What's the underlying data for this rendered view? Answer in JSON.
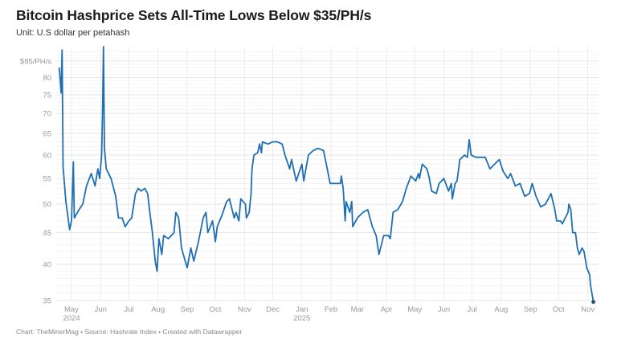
{
  "title": "Bitcoin Hashprice Sets All-Time Lows Below $35/PH/s",
  "subtitle": "Unit: U.S dollar per petahash",
  "footer": "Chart: TheMinerMag • Source: Hashrate Index • Created with Datawrapper",
  "colors": {
    "line": "#1f6fb2",
    "grid": "#e6e6e6",
    "text": "#999999"
  },
  "chart_data": {
    "type": "line",
    "title": "Bitcoin Hashprice Sets All-Time Lows Below $35/PH/s",
    "ylabel": "",
    "xlabel": "",
    "y_scale": "log",
    "ylim": [
      35,
      85
    ],
    "grid": true,
    "y_ticks": [
      {
        "value": 85,
        "label": "$85/PH/s"
      },
      {
        "value": 80,
        "label": "80"
      },
      {
        "value": 75,
        "label": "75"
      },
      {
        "value": 70,
        "label": "70"
      },
      {
        "value": 65,
        "label": "65"
      },
      {
        "value": 60,
        "label": "60"
      },
      {
        "value": 55,
        "label": "55"
      },
      {
        "value": 50,
        "label": "50"
      },
      {
        "value": 45,
        "label": "45"
      },
      {
        "value": 40,
        "label": "40"
      },
      {
        "value": 35,
        "label": "35"
      }
    ],
    "x_ticks": [
      {
        "date": "2024-05-01",
        "label": "May",
        "sub": "2024"
      },
      {
        "date": "2024-06-01",
        "label": "Jun"
      },
      {
        "date": "2024-07-01",
        "label": "Jul"
      },
      {
        "date": "2024-08-01",
        "label": "Aug"
      },
      {
        "date": "2024-09-01",
        "label": "Sep"
      },
      {
        "date": "2024-10-01",
        "label": "Oct"
      },
      {
        "date": "2024-11-01",
        "label": "Nov"
      },
      {
        "date": "2024-12-01",
        "label": "Dec"
      },
      {
        "date": "2025-01-01",
        "label": "Jan",
        "sub": "2025"
      },
      {
        "date": "2025-02-01",
        "label": "Feb"
      },
      {
        "date": "2025-03-01",
        "label": "Mar"
      },
      {
        "date": "2025-04-01",
        "label": "Apr"
      },
      {
        "date": "2025-05-01",
        "label": "May"
      },
      {
        "date": "2025-06-01",
        "label": "Jun"
      },
      {
        "date": "2025-07-01",
        "label": "Jul"
      },
      {
        "date": "2025-08-01",
        "label": "Aug"
      },
      {
        "date": "2025-09-01",
        "label": "Sep"
      },
      {
        "date": "2025-10-01",
        "label": "Oct"
      },
      {
        "date": "2025-11-01",
        "label": "Nov"
      }
    ],
    "series": [
      {
        "points": [
          [
            "2024-04-18",
            83
          ],
          [
            "2024-04-20",
            75.5
          ],
          [
            "2024-04-21",
            88.6
          ],
          [
            "2024-04-22",
            57.5
          ],
          [
            "2024-04-25",
            50.5
          ],
          [
            "2024-04-29",
            45.5
          ],
          [
            "2024-05-01",
            47
          ],
          [
            "2024-05-03",
            58.5
          ],
          [
            "2024-05-04",
            47.5
          ],
          [
            "2024-05-09",
            49
          ],
          [
            "2024-05-13",
            50
          ],
          [
            "2024-05-17",
            53.5
          ],
          [
            "2024-05-22",
            56
          ],
          [
            "2024-05-26",
            53.5
          ],
          [
            "2024-05-29",
            57
          ],
          [
            "2024-05-31",
            55
          ],
          [
            "2024-06-02",
            60
          ],
          [
            "2024-06-03",
            70
          ],
          [
            "2024-06-04",
            90
          ],
          [
            "2024-06-05",
            61.5
          ],
          [
            "2024-06-07",
            57
          ],
          [
            "2024-06-12",
            55
          ],
          [
            "2024-06-17",
            51.5
          ],
          [
            "2024-06-20",
            47.5
          ],
          [
            "2024-06-24",
            47.5
          ],
          [
            "2024-06-27",
            46
          ],
          [
            "2024-07-01",
            47
          ],
          [
            "2024-07-04",
            47.5
          ],
          [
            "2024-07-08",
            52
          ],
          [
            "2024-07-11",
            53
          ],
          [
            "2024-07-14",
            52.5
          ],
          [
            "2024-07-18",
            53
          ],
          [
            "2024-07-21",
            52
          ],
          [
            "2024-07-23",
            49
          ],
          [
            "2024-07-26",
            45
          ],
          [
            "2024-07-29",
            40.5
          ],
          [
            "2024-07-31",
            39
          ],
          [
            "2024-08-02",
            44
          ],
          [
            "2024-08-05",
            41.5
          ],
          [
            "2024-08-07",
            44.5
          ],
          [
            "2024-08-12",
            44
          ],
          [
            "2024-08-18",
            45
          ],
          [
            "2024-08-20",
            48.5
          ],
          [
            "2024-08-23",
            47.5
          ],
          [
            "2024-08-26",
            42.5
          ],
          [
            "2024-08-30",
            40.5
          ],
          [
            "2024-09-01",
            39.5
          ],
          [
            "2024-09-05",
            42.5
          ],
          [
            "2024-09-08",
            40.5
          ],
          [
            "2024-09-13",
            43.5
          ],
          [
            "2024-09-18",
            47.5
          ],
          [
            "2024-09-21",
            48.5
          ],
          [
            "2024-09-23",
            45
          ],
          [
            "2024-09-28",
            47
          ],
          [
            "2024-10-01",
            43.5
          ],
          [
            "2024-10-03",
            46
          ],
          [
            "2024-10-08",
            48
          ],
          [
            "2024-10-13",
            50.5
          ],
          [
            "2024-10-16",
            51
          ],
          [
            "2024-10-21",
            47.5
          ],
          [
            "2024-10-23",
            48.5
          ],
          [
            "2024-10-26",
            47
          ],
          [
            "2024-10-28",
            51
          ],
          [
            "2024-11-02",
            50
          ],
          [
            "2024-11-03",
            47.5
          ],
          [
            "2024-11-06",
            48.5
          ],
          [
            "2024-11-08",
            52
          ],
          [
            "2024-11-09",
            57
          ],
          [
            "2024-11-11",
            60
          ],
          [
            "2024-11-15",
            60.5
          ],
          [
            "2024-11-17",
            62.5
          ],
          [
            "2024-11-19",
            60.5
          ],
          [
            "2024-11-20",
            63
          ],
          [
            "2024-11-26",
            62.5
          ],
          [
            "2024-12-01",
            63
          ],
          [
            "2024-12-06",
            63
          ],
          [
            "2024-12-11",
            62.5
          ],
          [
            "2024-12-14",
            60
          ],
          [
            "2024-12-19",
            57
          ],
          [
            "2024-12-21",
            59
          ],
          [
            "2024-12-26",
            54.5
          ],
          [
            "2025-01-01",
            58
          ],
          [
            "2025-01-03",
            54.5
          ],
          [
            "2025-01-08",
            60
          ],
          [
            "2025-01-13",
            61
          ],
          [
            "2025-01-18",
            61.5
          ],
          [
            "2025-01-24",
            61
          ],
          [
            "2025-01-27",
            58
          ],
          [
            "2025-01-31",
            54
          ],
          [
            "2025-02-05",
            54
          ],
          [
            "2025-02-11",
            54
          ],
          [
            "2025-02-12",
            55.5
          ],
          [
            "2025-02-14",
            53
          ],
          [
            "2025-02-16",
            47
          ],
          [
            "2025-02-17",
            50.5
          ],
          [
            "2025-02-21",
            48.5
          ],
          [
            "2025-02-23",
            50.5
          ],
          [
            "2025-02-24",
            46
          ],
          [
            "2025-03-01",
            47.5
          ],
          [
            "2025-03-07",
            48.5
          ],
          [
            "2025-03-12",
            49
          ],
          [
            "2025-03-17",
            46
          ],
          [
            "2025-03-21",
            44.5
          ],
          [
            "2025-03-24",
            41.5
          ],
          [
            "2025-03-29",
            44.5
          ],
          [
            "2025-04-03",
            44.5
          ],
          [
            "2025-04-05",
            44
          ],
          [
            "2025-04-08",
            48.5
          ],
          [
            "2025-04-13",
            49
          ],
          [
            "2025-04-18",
            50.5
          ],
          [
            "2025-04-22",
            53
          ],
          [
            "2025-04-27",
            55.5
          ],
          [
            "2025-05-02",
            54.5
          ],
          [
            "2025-05-05",
            56
          ],
          [
            "2025-05-06",
            55
          ],
          [
            "2025-05-09",
            58
          ],
          [
            "2025-05-14",
            57
          ],
          [
            "2025-05-16",
            55.5
          ],
          [
            "2025-05-19",
            52.5
          ],
          [
            "2025-05-24",
            52
          ],
          [
            "2025-05-27",
            54
          ],
          [
            "2025-06-01",
            55
          ],
          [
            "2025-06-06",
            52.5
          ],
          [
            "2025-06-09",
            54
          ],
          [
            "2025-06-10",
            51
          ],
          [
            "2025-06-13",
            54
          ],
          [
            "2025-06-15",
            54.5
          ],
          [
            "2025-06-18",
            59
          ],
          [
            "2025-06-23",
            60
          ],
          [
            "2025-06-26",
            59.5
          ],
          [
            "2025-06-28",
            63.5
          ],
          [
            "2025-06-30",
            60
          ],
          [
            "2025-07-05",
            59.5
          ],
          [
            "2025-07-10",
            59.5
          ],
          [
            "2025-07-15",
            59.5
          ],
          [
            "2025-07-20",
            57
          ],
          [
            "2025-07-25",
            58
          ],
          [
            "2025-07-30",
            59
          ],
          [
            "2025-08-03",
            56.5
          ],
          [
            "2025-08-08",
            55
          ],
          [
            "2025-08-11",
            56
          ],
          [
            "2025-08-16",
            53.5
          ],
          [
            "2025-08-21",
            54
          ],
          [
            "2025-08-26",
            51.5
          ],
          [
            "2025-08-31",
            52
          ],
          [
            "2025-09-03",
            54
          ],
          [
            "2025-09-07",
            51.5
          ],
          [
            "2025-09-12",
            49.5
          ],
          [
            "2025-09-17",
            50
          ],
          [
            "2025-09-23",
            52
          ],
          [
            "2025-09-27",
            49
          ],
          [
            "2025-09-29",
            47
          ],
          [
            "2025-10-03",
            47
          ],
          [
            "2025-10-05",
            46.5
          ],
          [
            "2025-10-11",
            48.5
          ],
          [
            "2025-10-12",
            50
          ],
          [
            "2025-10-14",
            49
          ],
          [
            "2025-10-16",
            45
          ],
          [
            "2025-10-19",
            45
          ],
          [
            "2025-10-21",
            42.5
          ],
          [
            "2025-10-23",
            41.5
          ],
          [
            "2025-10-26",
            42.5
          ],
          [
            "2025-10-28",
            42
          ],
          [
            "2025-10-31",
            39.5
          ],
          [
            "2025-11-03",
            38.5
          ],
          [
            "2025-11-04",
            37
          ],
          [
            "2025-11-07",
            34.8
          ]
        ]
      }
    ]
  }
}
